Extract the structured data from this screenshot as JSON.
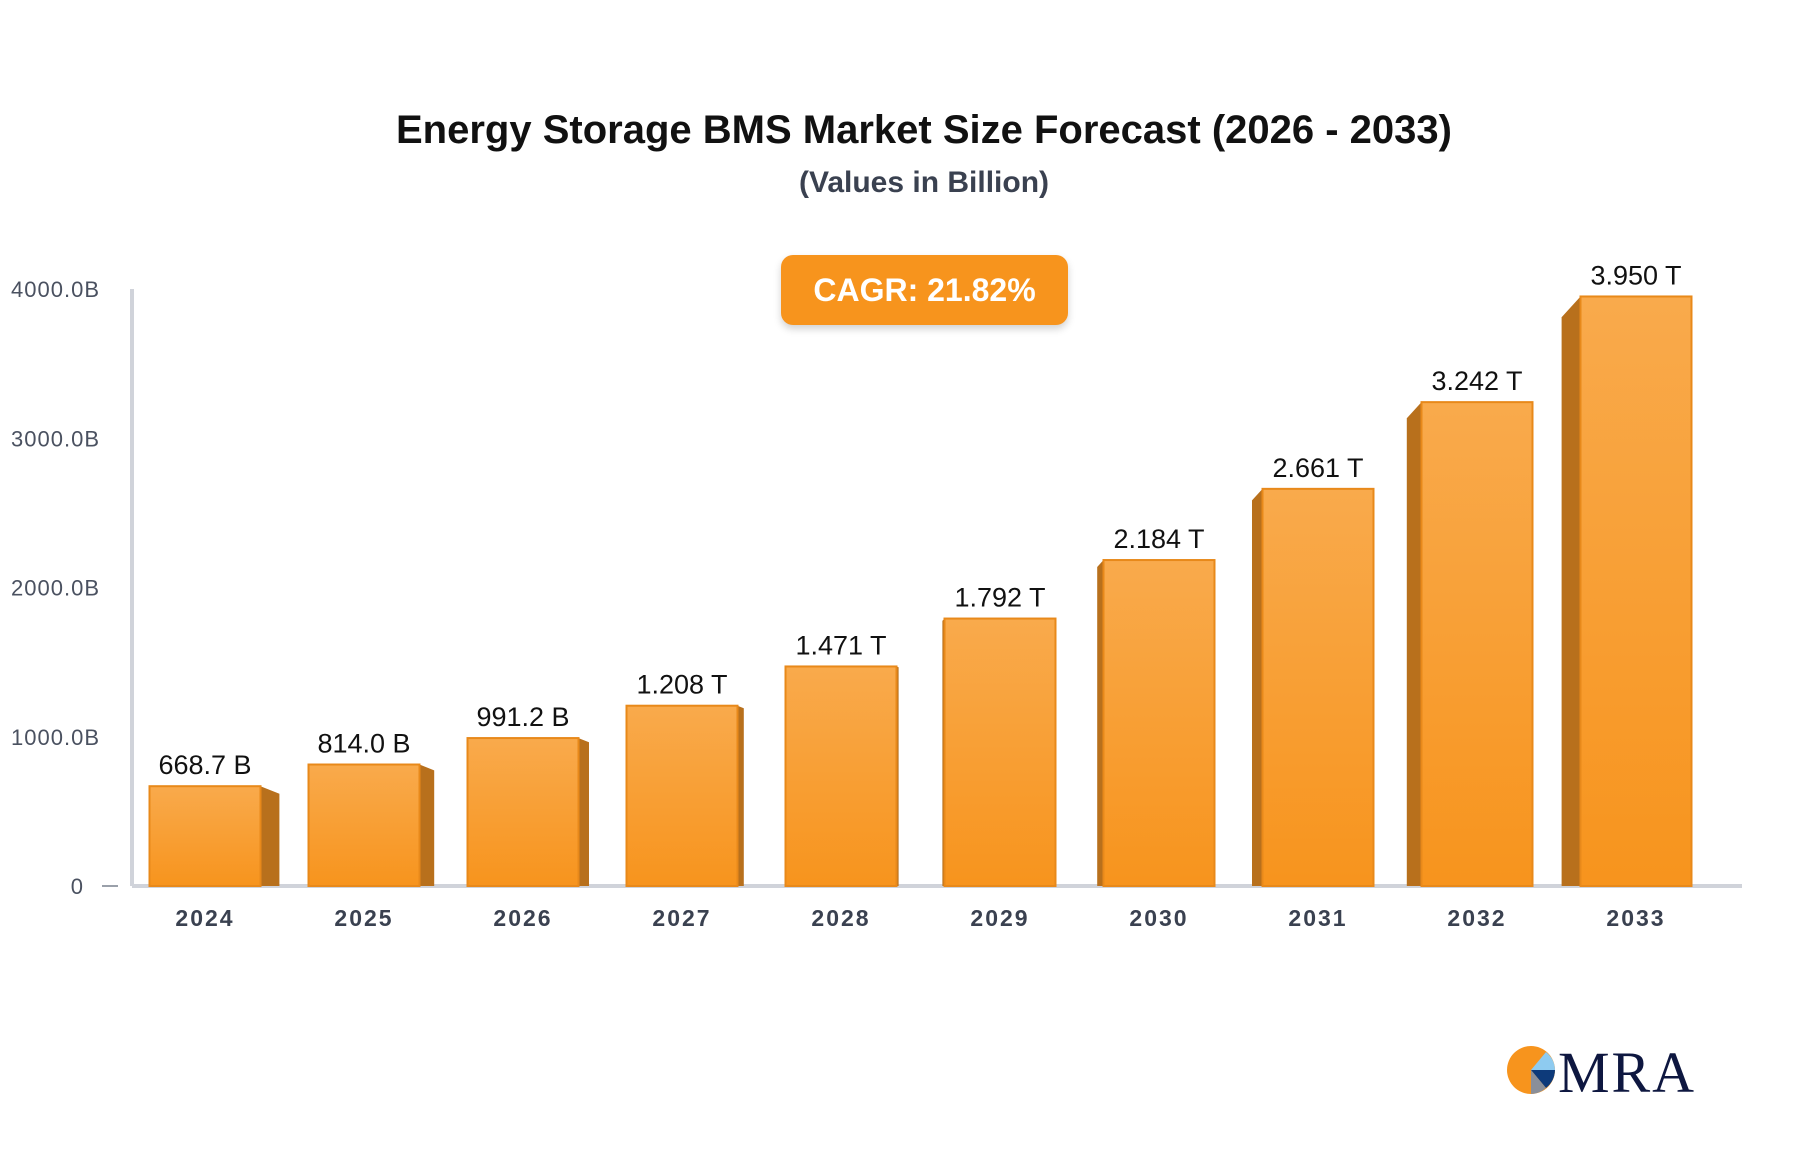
{
  "chart_data": {
    "type": "bar",
    "title": "Energy Storage BMS Market Size Forecast (2026 - 2033)",
    "subtitle": "(Values in Billion)",
    "annotation": "CAGR: 21.82%",
    "categories": [
      "2024",
      "2025",
      "2026",
      "2027",
      "2028",
      "2029",
      "2030",
      "2031",
      "2032",
      "2033"
    ],
    "values": [
      668.7,
      814.0,
      991.2,
      1208,
      1471,
      1792,
      2184,
      2661,
      3242,
      3950
    ],
    "data_labels": [
      "668.7 B",
      "814.0 B",
      "991.2 B",
      "1.208 T",
      "1.471 T",
      "1.792 T",
      "2.184 T",
      "2.661 T",
      "3.242 T",
      "3.950 T"
    ],
    "ylim": [
      0,
      4000
    ],
    "yticks": [
      0,
      1000,
      2000,
      3000,
      4000
    ],
    "ytick_labels": [
      "0",
      "1000.0B",
      "2000.0B",
      "3000.0B",
      "4000.0B"
    ],
    "xlabel": "",
    "ylabel": "",
    "grid": false,
    "colors": {
      "bar_top": "#f9aa4c",
      "bar_bottom": "#f7941d",
      "bar_side": "#b8701c",
      "axis": "#d0d3da"
    }
  },
  "logo": {
    "text": "MRA"
  }
}
